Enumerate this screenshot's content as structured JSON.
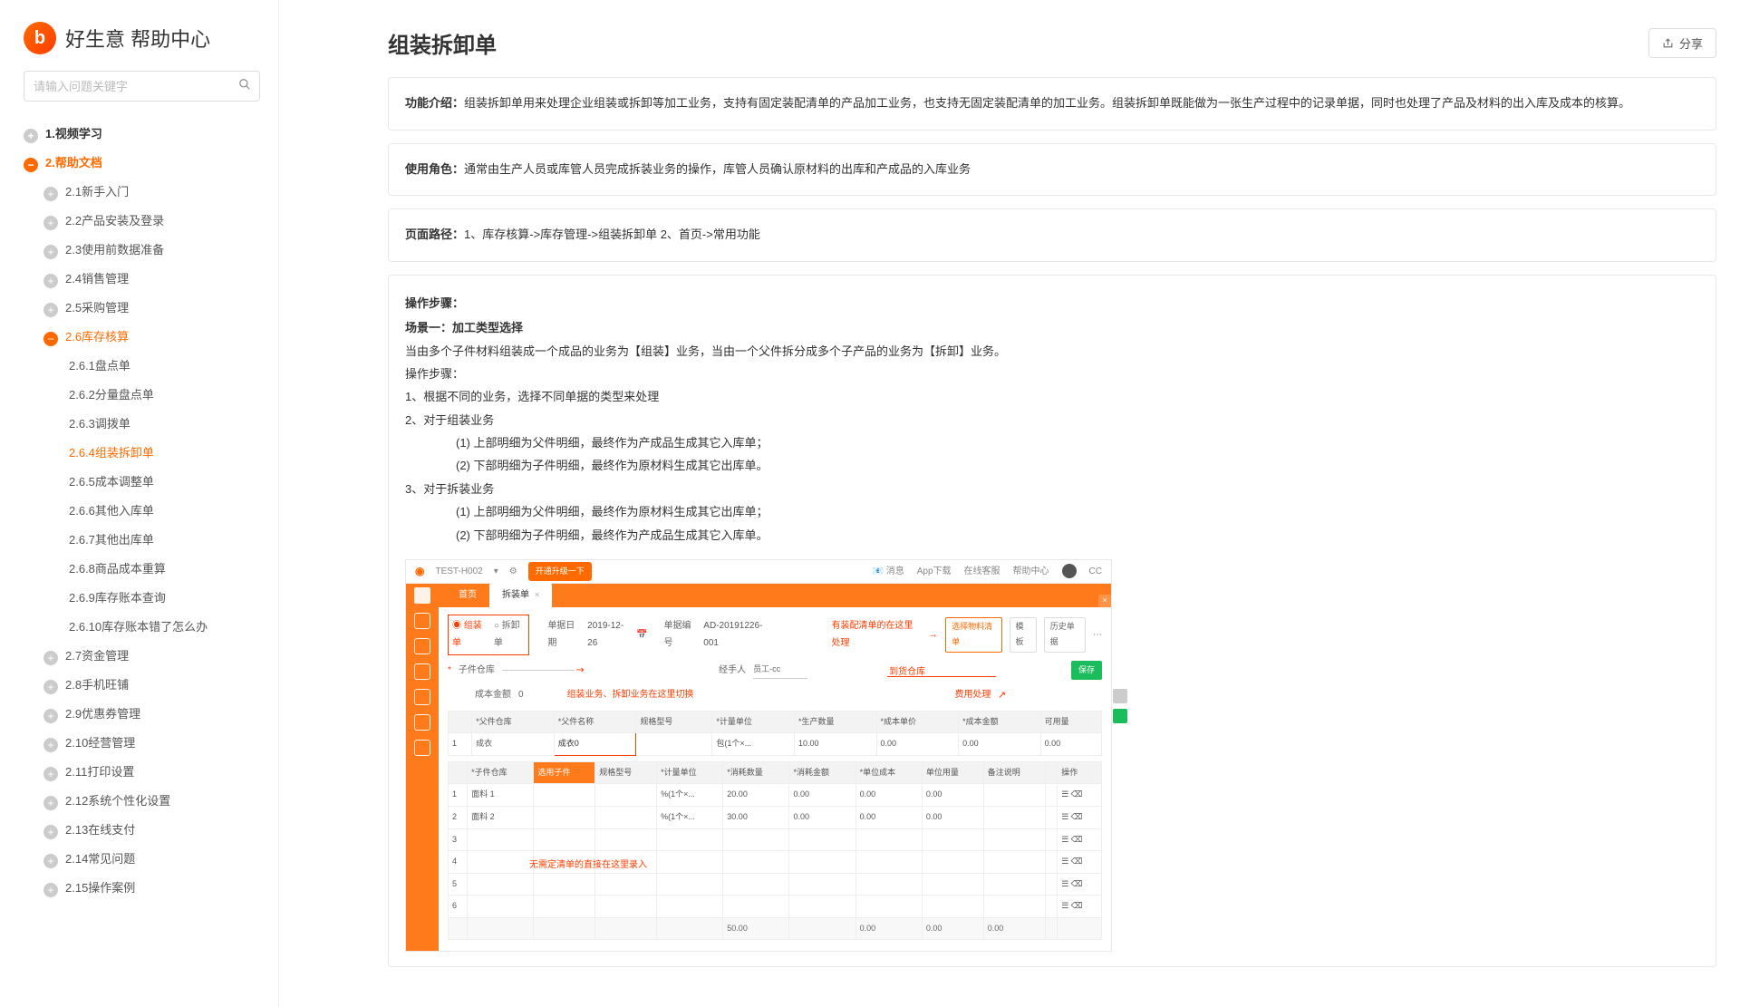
{
  "logo_text": "好生意 帮助中心",
  "search_placeholder": "请输入问题关键字",
  "share_label": "分享",
  "page_title": "组装拆卸单",
  "nav": [
    {
      "label": "1.视频学习",
      "level": 1,
      "open": false
    },
    {
      "label": "2.帮助文档",
      "level": 1,
      "open": true,
      "active": true
    },
    {
      "label": "2.1新手入门",
      "level": 2,
      "open": false
    },
    {
      "label": "2.2产品安装及登录",
      "level": 2,
      "open": false
    },
    {
      "label": "2.3使用前数据准备",
      "level": 2,
      "open": false
    },
    {
      "label": "2.4销售管理",
      "level": 2,
      "open": false
    },
    {
      "label": "2.5采购管理",
      "level": 2,
      "open": false
    },
    {
      "label": "2.6库存核算",
      "level": 2,
      "open": true,
      "active": true
    },
    {
      "label": "2.6.1盘点单",
      "level": 3
    },
    {
      "label": "2.6.2分量盘点单",
      "level": 3
    },
    {
      "label": "2.6.3调拨单",
      "level": 3
    },
    {
      "label": "2.6.4组装拆卸单",
      "level": 3,
      "active": true
    },
    {
      "label": "2.6.5成本调整单",
      "level": 3
    },
    {
      "label": "2.6.6其他入库单",
      "level": 3
    },
    {
      "label": "2.6.7其他出库单",
      "level": 3
    },
    {
      "label": "2.6.8商品成本重算",
      "level": 3
    },
    {
      "label": "2.6.9库存账本查询",
      "level": 3
    },
    {
      "label": "2.6.10库存账本错了怎么办",
      "level": 3
    },
    {
      "label": "2.7资金管理",
      "level": 2,
      "open": false
    },
    {
      "label": "2.8手机旺铺",
      "level": 2,
      "open": false
    },
    {
      "label": "2.9优惠券管理",
      "level": 2,
      "open": false
    },
    {
      "label": "2.10经营管理",
      "level": 2,
      "open": false
    },
    {
      "label": "2.11打印设置",
      "level": 2,
      "open": false
    },
    {
      "label": "2.12系统个性化设置",
      "level": 2,
      "open": false
    },
    {
      "label": "2.13在线支付",
      "level": 2,
      "open": false
    },
    {
      "label": "2.14常见问题",
      "level": 2,
      "open": false
    },
    {
      "label": "2.15操作案例",
      "level": 2,
      "open": false
    }
  ],
  "card1_label": "功能介绍：",
  "card1_text": "组装拆卸单用来处理企业组装或拆卸等加工业务，支持有固定装配清单的产品加工业务，也支持无固定装配清单的加工业务。组装拆卸单既能做为一张生产过程中的记录单据，同时也处理了产品及材料的出入库及成本的核算。",
  "card2_label": "使用角色：",
  "card2_text": "通常由生产人员或库管人员完成拆装业务的操作，库管人员确认原材料的出库和产成品的入库业务",
  "card3_label": "页面路径：",
  "card3_text": "1、库存核算->库存管理->组装拆卸单 2、首页->常用功能",
  "steps": {
    "h1": "操作步骤：",
    "h2": "场景一：加工类型选择",
    "p1": "当由多个子件材料组装成一个成品的业务为【组装】业务，当由一个父件拆分成多个子产品的业务为【拆卸】业务。",
    "p2": "操作步骤：",
    "p3": "1、根据不同的业务，选择不同单据的类型来处理",
    "p4": "2、对于组装业务",
    "p4a": "(1) 上部明细为父件明细，最终作为产成品生成其它入库单；",
    "p4b": "(2) 下部明细为子件明细，最终作为原材料生成其它出库单。",
    "p5": "3、对于拆装业务",
    "p5a": "(1) 上部明细为父件明细，最终作为原材料生成其它出库单；",
    "p5b": "(2) 下部明细为子件明细，最终作为产成品生成其它入库单。"
  },
  "ss": {
    "brand": "好生意",
    "test": "TEST-H002",
    "topbar_btn": "开通升级一下",
    "topbar_right": [
      "消息",
      "App下载",
      "在线客服",
      "帮助中心",
      "CC"
    ],
    "tabs": [
      "首页",
      "拆装单"
    ],
    "radio": [
      "组装单",
      "拆卸单"
    ],
    "date_label": "单据日期",
    "date": "2019-12-26",
    "order_label": "单据编号",
    "order": "AD-20191226-001",
    "note1": "有装配清单的在这里处理",
    "note2": "组装业务、拆卸业务在这里切换",
    "note3": "费用处理",
    "note4": "无需定清单的直接在这里录入",
    "btn_material": "选择物料清单",
    "btn_tpl": "模板",
    "btn_history": "历史单据",
    "label_handler": "经手人",
    "handler": "员工-cc",
    "label_fee": "到货仓库",
    "fee_input": "到货仓库",
    "save": "保存",
    "cost_label": "成本金额",
    "cost_val": "0",
    "th1": [
      "",
      "*父件仓库",
      "*父件名称",
      "规格型号",
      "*计量单位",
      "*生产数量",
      "*成本单价",
      "*成本金额",
      "可用量"
    ],
    "row1": [
      "1",
      "成衣",
      "成衣0",
      "",
      "包(1个×...",
      "10.00",
      "0.00",
      "0.00",
      "0.00"
    ],
    "th2": [
      "",
      "*子件仓库",
      "选用子件",
      "规格型号",
      "*计量单位",
      "*消耗数量",
      "*消耗金额",
      "*单位成本",
      "单位用量",
      "备注说明",
      "",
      "操作"
    ],
    "rows2": [
      [
        "1",
        "面料 1",
        "",
        "",
        "%(1个×...",
        "20.00",
        "0.00",
        "0.00",
        "0.00",
        "",
        "",
        "☰ ⌫"
      ],
      [
        "2",
        "面料 2",
        "",
        "",
        "%(1个×...",
        "30.00",
        "0.00",
        "0.00",
        "0.00",
        "",
        "",
        "☰ ⌫"
      ],
      [
        "3",
        "",
        "",
        "",
        "",
        "",
        "",
        "",
        "",
        "",
        "",
        "☰ ⌫"
      ],
      [
        "4",
        "",
        "",
        "",
        "",
        "",
        "",
        "",
        "",
        "",
        "",
        "☰ ⌫"
      ],
      [
        "5",
        "",
        "",
        "",
        "",
        "",
        "",
        "",
        "",
        "",
        "",
        "☰ ⌫"
      ],
      [
        "6",
        "",
        "",
        "",
        "",
        "",
        "",
        "",
        "",
        "",
        "",
        "☰ ⌫"
      ]
    ],
    "footer": [
      "",
      "",
      "",
      "",
      "",
      "50.00",
      "",
      "0.00",
      "0.00",
      "0.00",
      "",
      ""
    ]
  },
  "colors": {
    "accent": "#ff6a00",
    "accent2": "#ff3d00",
    "green": "#1abc5b",
    "border": "#e8e8e8",
    "text": "#333",
    "muted": "#888",
    "bg": "#ffffff"
  }
}
